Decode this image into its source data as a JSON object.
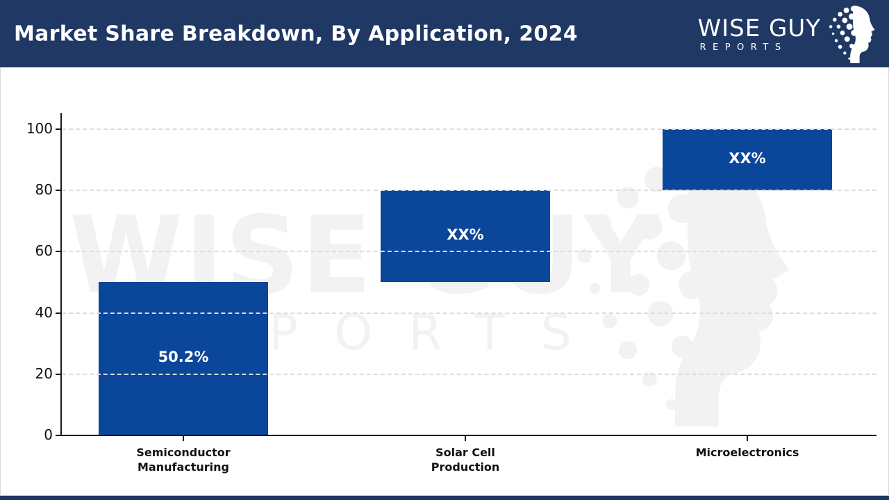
{
  "header": {
    "title": "Market Share Breakdown, By Application, 2024",
    "logo": {
      "line1": "WISE GUY",
      "line2": "REPORTS"
    }
  },
  "watermark": {
    "line1": "WISE GUY",
    "line2": "REPORTS"
  },
  "colors": {
    "header_bg": "#1f3864",
    "bar_blue": "#0a4699",
    "axis": "#1a1a1a",
    "grid": "#dcdcdc",
    "watermark": "#f2f2f2",
    "text": "#111111"
  },
  "chart_data": {
    "type": "bar",
    "subtype": "waterfall-stacked",
    "title": "Market Share Breakdown, By Application, 2024",
    "unit": "percent market share",
    "categories": [
      {
        "id": "semiconductor-manufacturing",
        "line1": "Semiconductor",
        "line2": "Manufacturing"
      },
      {
        "id": "solar-cell-production",
        "line1": "Solar Cell",
        "line2": "Production"
      },
      {
        "id": "microelectronics",
        "line1": "Microelectronics",
        "line2": ""
      }
    ],
    "segments": [
      {
        "id": "semiconductor-manufacturing",
        "start": 0,
        "end": 50.2,
        "label": "50.2%"
      },
      {
        "id": "solar-cell-production",
        "start": 50.2,
        "end": 80,
        "label": "XX%"
      },
      {
        "id": "microelectronics",
        "start": 80,
        "end": 100,
        "label": "XX%"
      }
    ],
    "yticks": [
      0,
      20,
      40,
      60,
      80,
      100
    ],
    "ylim": [
      0,
      105
    ],
    "grid": "horizontal dashed",
    "legend": "none",
    "bar_color": "#0a4699",
    "label_color": "#ffffff"
  }
}
